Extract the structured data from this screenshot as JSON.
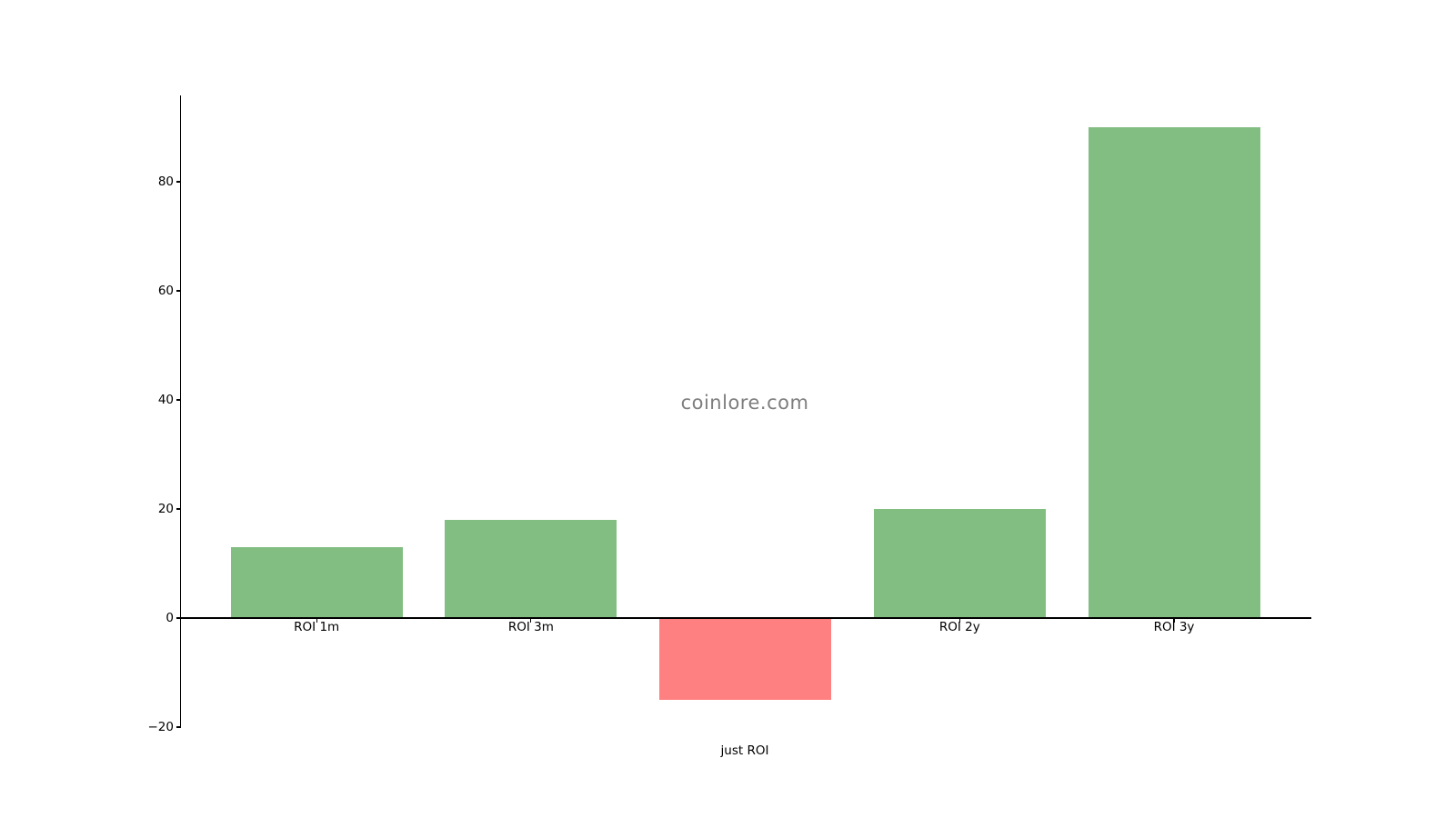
{
  "chart_data": {
    "type": "bar",
    "title": "",
    "xlabel": "just ROI",
    "ylabel": "",
    "categories": [
      "ROI 1m",
      "ROI 3m",
      "",
      "ROI 2y",
      "ROI 3y"
    ],
    "values": [
      13,
      18,
      -15,
      20,
      90
    ],
    "series": [
      {
        "name": "just ROI",
        "values": [
          13,
          18,
          -15,
          20,
          90
        ]
      }
    ],
    "bar_colors": [
      "#82bd82",
      "#82bd82",
      "#ff8080",
      "#82bd82",
      "#82bd82"
    ],
    "positive_color": "#82bd82",
    "negative_color": "#ff8080",
    "y_ticks": [
      -20,
      0,
      20,
      40,
      60,
      80
    ],
    "y_tick_labels": [
      "−20",
      "0",
      "20",
      "40",
      "60",
      "80"
    ],
    "ylim": [
      -20,
      95.8
    ],
    "grid": false,
    "legend": null,
    "note": "middle category tick label is hidden behind the negative red bar",
    "watermark": "coinlore.com"
  }
}
